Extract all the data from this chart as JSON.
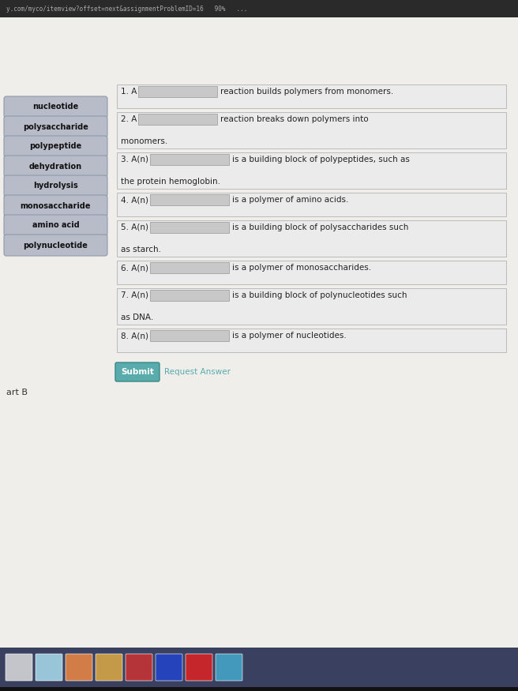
{
  "page_bg": "#dcdcdc",
  "content_bg": "#f0eeeb",
  "top_bar_bg": "#2a2a2a",
  "top_bar_text": "y.com/myco/itemview?offset=next&assignmentProblemID=16   90%   ...",
  "left_terms": [
    "nucleotide",
    "polysaccharide",
    "polypeptide",
    "dehydration",
    "hydrolysis",
    "monosaccharide",
    "amino acid",
    "polynucleotide"
  ],
  "left_box_bg": "#b8bcc8",
  "left_box_border": "#9099aa",
  "left_text_color": "#111111",
  "questions": [
    {
      "num": "1. A",
      "line1": "reaction builds polymers from monomers.",
      "line2": null,
      "two_line": false
    },
    {
      "num": "2. A",
      "line1": "reaction breaks down polymers into",
      "line2": "monomers.",
      "two_line": true
    },
    {
      "num": "3. A(n)",
      "line1": "is a building block of polypeptides, such as",
      "line2": "the protein hemoglobin.",
      "two_line": true
    },
    {
      "num": "4. A(n)",
      "line1": "is a polymer of amino acids.",
      "line2": null,
      "two_line": false
    },
    {
      "num": "5. A(n)",
      "line1": "is a building block of polysaccharides such",
      "line2": "as starch.",
      "two_line": true
    },
    {
      "num": "6. A(n)",
      "line1": "is a polymer of monosaccharides.",
      "line2": null,
      "two_line": false
    },
    {
      "num": "7. A(n)",
      "line1": "is a building block of polynucleotides such",
      "line2": "as DNA.",
      "two_line": true
    },
    {
      "num": "8. A(n)",
      "line1": "is a polymer of nucleotides.",
      "line2": null,
      "two_line": false
    }
  ],
  "ans_box_bg": "#c8c8c8",
  "ans_box_border": "#aaaaaa",
  "q_box_bg": "#ebebeb",
  "q_box_border": "#bbbbbb",
  "submit_bg": "#5aacac",
  "submit_text": "Submit",
  "submit_text_color": "#ffffff",
  "request_text": "Request Answer",
  "request_text_color": "#5aacac",
  "part_text": "art B",
  "taskbar_bg": "#3a4060",
  "taskbar_bottom_bg": "#111111",
  "font_color": "#222222",
  "font_size_terms": 7.0,
  "font_size_q": 7.5
}
